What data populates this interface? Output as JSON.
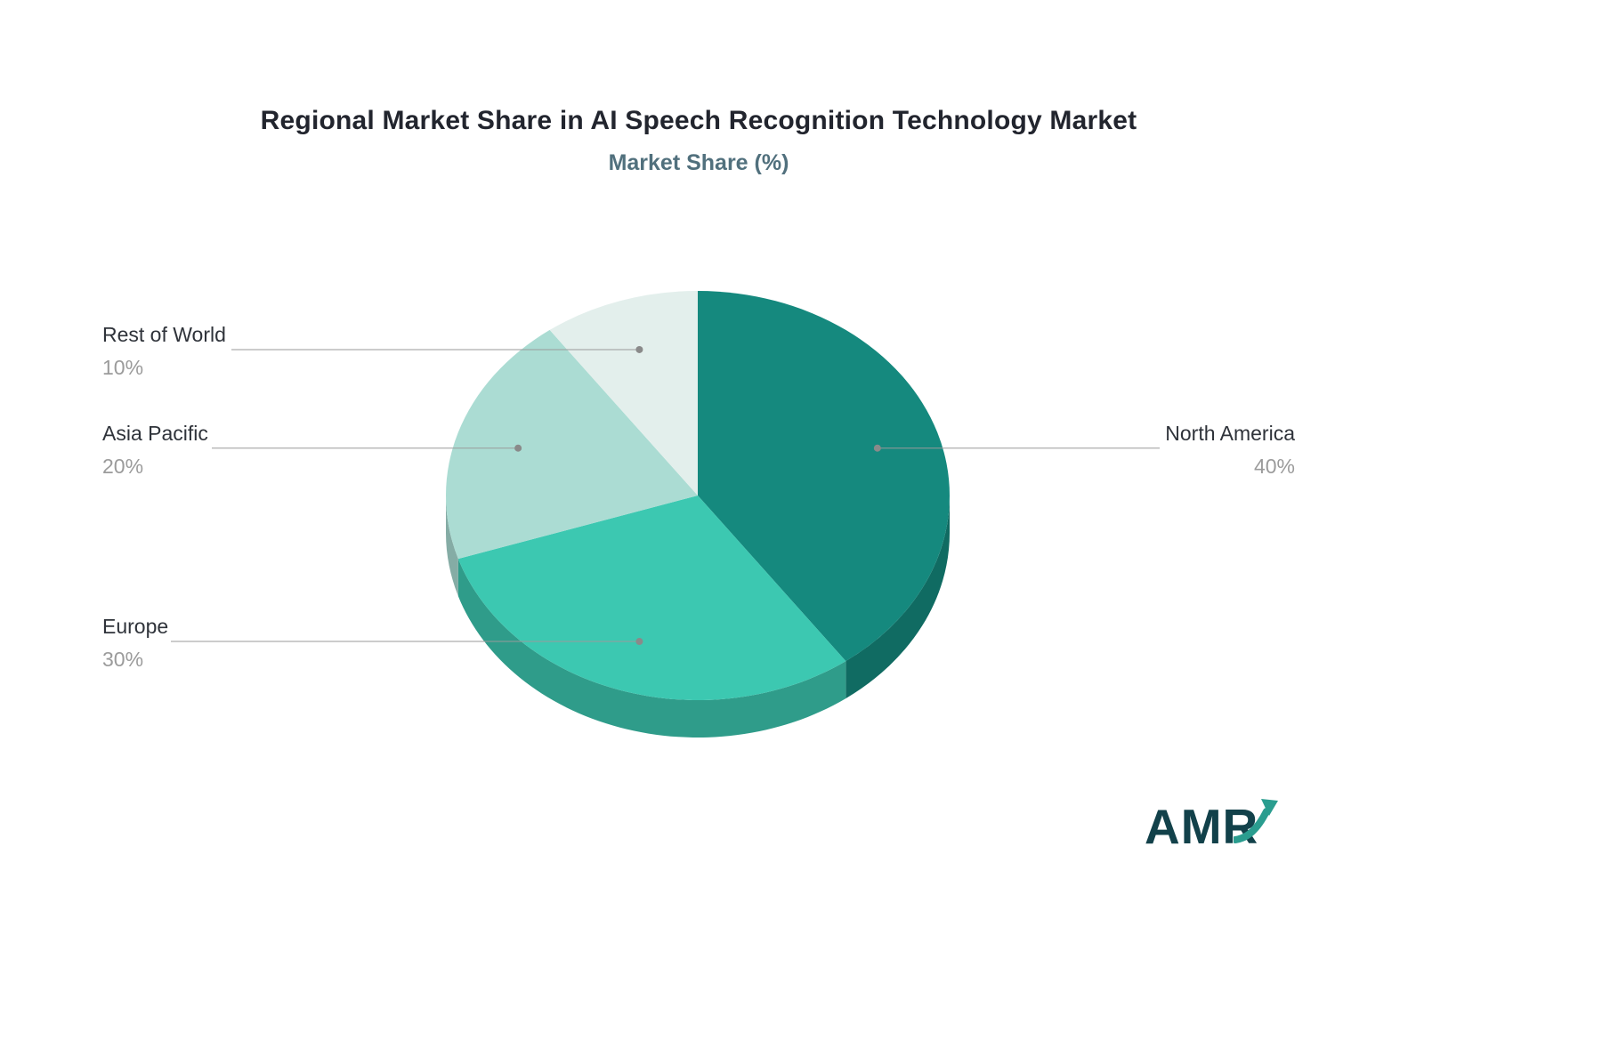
{
  "chart_data": {
    "type": "pie",
    "style": "3d-pie",
    "title": "Regional Market Share in AI Speech Recognition Technology Market",
    "subtitle": "Market Share (%)",
    "unit": "%",
    "direction": "clockwise",
    "start_angle_deg": 0,
    "legend_position": "none",
    "slices": [
      {
        "label": "North America",
        "value": 40,
        "pct_label": "40%",
        "color": "#15897e"
      },
      {
        "label": "Europe",
        "value": 30,
        "pct_label": "30%",
        "color": "#3cc8b1"
      },
      {
        "label": "Asia Pacific",
        "value": 20,
        "pct_label": "20%",
        "color": "#abdcd3"
      },
      {
        "label": "Rest of World",
        "value": 10,
        "pct_label": "10%",
        "color": "#e3efec"
      }
    ]
  },
  "branding": {
    "logo_text": "AMR",
    "logo_color": "#12414a",
    "arrow_color": "#2a9d8f"
  }
}
